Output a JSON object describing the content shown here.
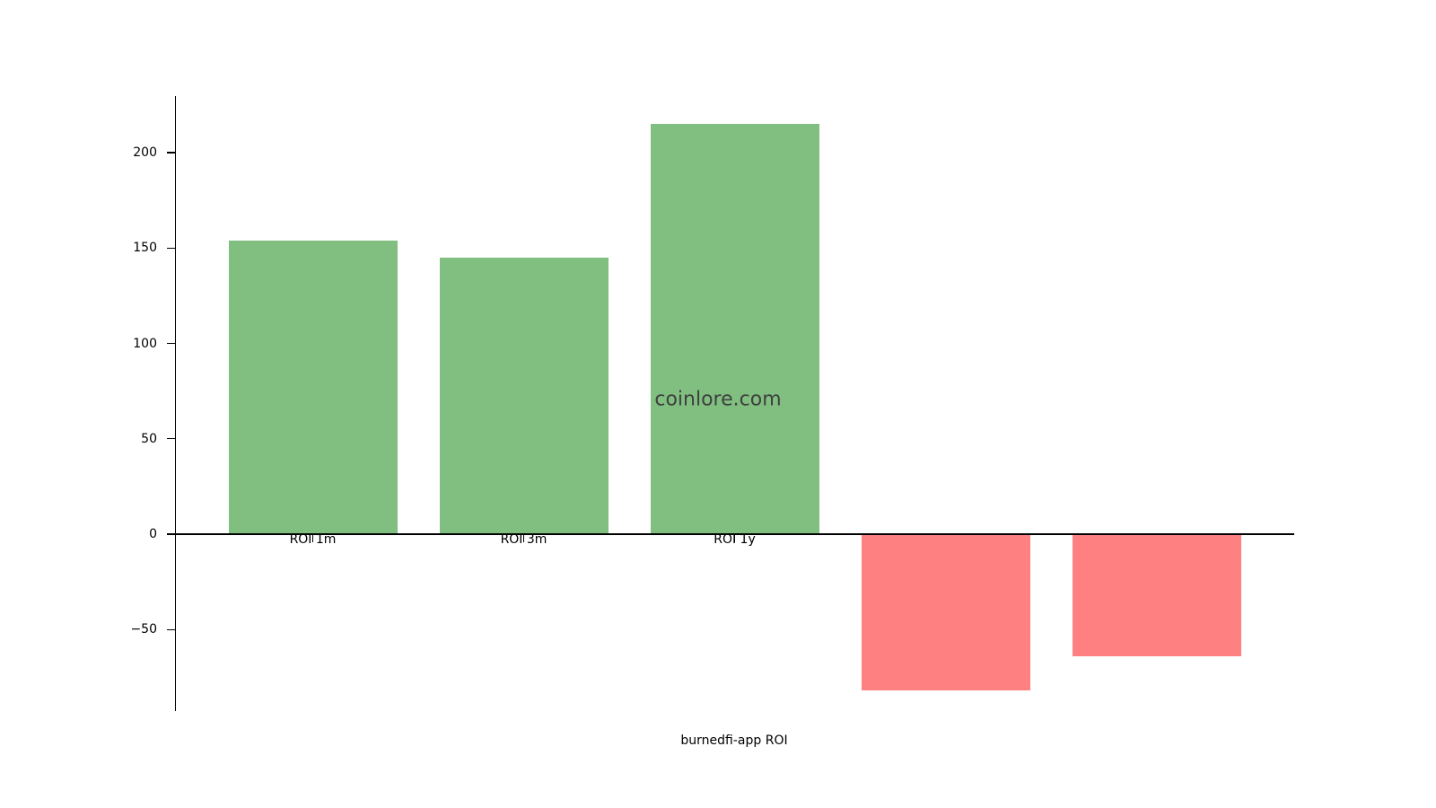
{
  "chart_data": {
    "type": "bar",
    "title": "",
    "xlabel": "burnedfi-app ROI",
    "ylabel": "",
    "categories": [
      "ROI 1m",
      "ROI 3m",
      "ROI 1y",
      "",
      ""
    ],
    "values": [
      154,
      145,
      215,
      -82,
      -64
    ],
    "yticks": [
      200,
      150,
      100,
      50,
      0,
      -50
    ],
    "ylim": [
      -92,
      230
    ],
    "grid": false,
    "legend_position": "none",
    "positive_color": "#80bf80",
    "negative_color": "#ff8080",
    "axis_color": "#000000",
    "tick_label_color": "#000000"
  },
  "watermark": {
    "text": "coinlore.com",
    "color": "#404040"
  }
}
